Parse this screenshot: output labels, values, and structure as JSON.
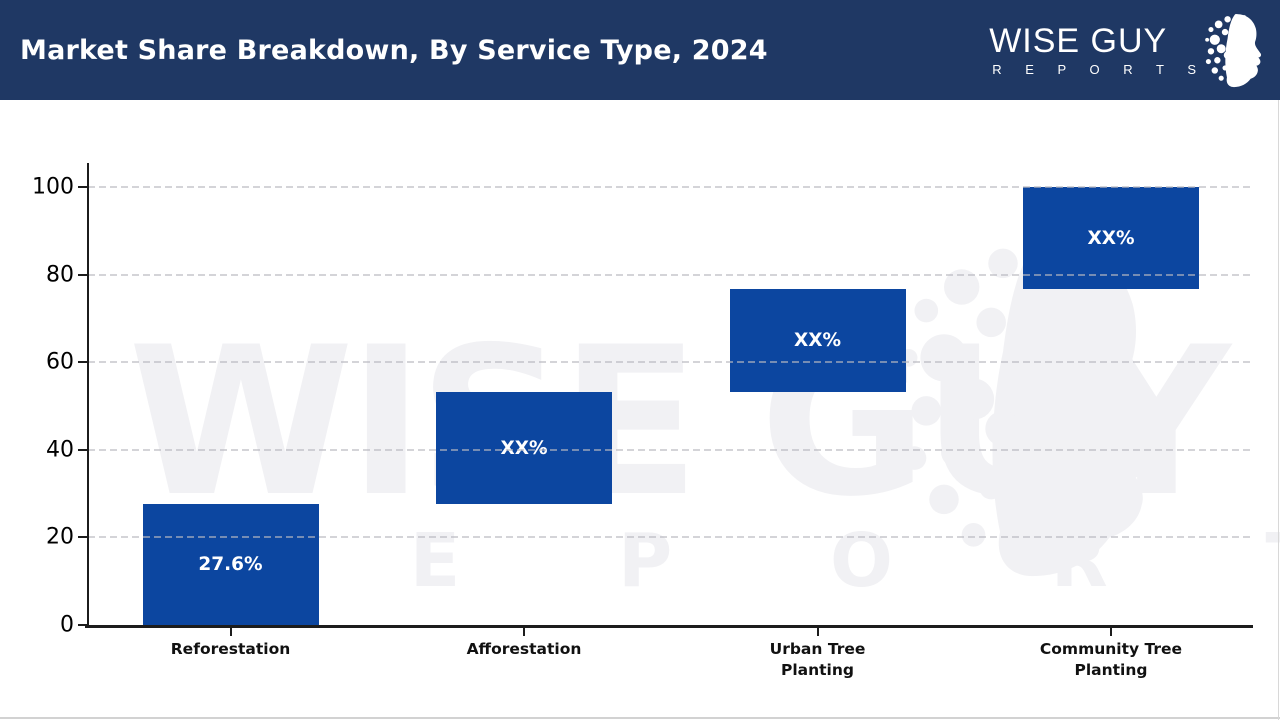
{
  "header": {
    "title": "Market Share Breakdown, By Service Type, 2024",
    "brand": {
      "line1": "WISE GUY",
      "line2": "R E P O R T S"
    }
  },
  "watermark": {
    "line1": "WISE GUY",
    "line2": "R E P O R T S"
  },
  "colors": {
    "header_background": "#1f3864",
    "bar_fill": "#0c46a0",
    "bar_label_text": "#ffffff",
    "axis": "#1c1c1c",
    "watermark": "#f1f1f4"
  },
  "chart_data": {
    "type": "bar",
    "subtype": "waterfall",
    "title": "Market Share Breakdown, By Service Type, 2024",
    "xlabel": "",
    "ylabel": "",
    "ylim": [
      0,
      100
    ],
    "yticks": [
      0,
      20,
      40,
      60,
      80,
      100
    ],
    "grid": "horizontal-dashed-over-bars",
    "legend": "none",
    "categories": [
      "Reforestation",
      "Afforestation",
      "Urban Tree Planting",
      "Community Tree Planting"
    ],
    "x_tick_lines": [
      [
        "Reforestation"
      ],
      [
        "Afforestation"
      ],
      [
        "Urban Tree",
        "Planting"
      ],
      [
        "Community Tree",
        "Planting"
      ]
    ],
    "segments": [
      {
        "category": "Reforestation",
        "start": 0,
        "end": 27.6,
        "label": "27.6%"
      },
      {
        "category": "Afforestation",
        "start": 27.6,
        "end": 53.2,
        "label": "XX%"
      },
      {
        "category": "Urban Tree Planting",
        "start": 53.2,
        "end": 76.6,
        "label": "XX%"
      },
      {
        "category": "Community Tree Planting",
        "start": 76.6,
        "end": 100,
        "label": "XX%"
      }
    ]
  }
}
